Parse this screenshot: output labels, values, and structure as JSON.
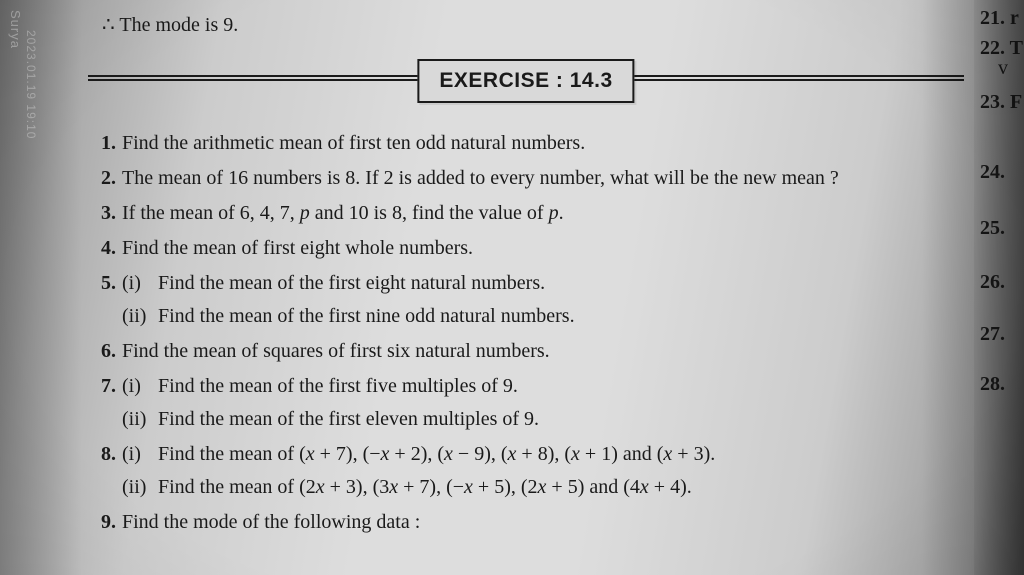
{
  "watermark": {
    "a": "Surya",
    "b": "2023.01.19 19:10"
  },
  "top_line": "∴ The mode is 9.",
  "exercise_label": "EXERCISE : 14.3",
  "questions": [
    {
      "n": "1.",
      "body": [
        "Find the arithmetic mean of first ten odd natural numbers."
      ]
    },
    {
      "n": "2.",
      "body": [
        "The mean of 16 numbers is 8. If 2 is added to every number, what will be the new mean ?"
      ]
    },
    {
      "n": "3.",
      "body_html": "If the mean of 6, 4, 7, <span class='ital'>p</span> and 10 is 8, find the value of <span class='ital'>p</span>."
    },
    {
      "n": "4.",
      "body": [
        "Find the mean of first eight whole numbers."
      ]
    },
    {
      "n": "5.",
      "sub": [
        {
          "label": "(i)",
          "text": "Find the mean of the first eight natural numbers."
        },
        {
          "label": "(ii)",
          "text": "Find the mean of the first nine odd natural numbers."
        }
      ]
    },
    {
      "n": "6.",
      "body": [
        "Find the mean of squares of first six natural numbers."
      ]
    },
    {
      "n": "7.",
      "sub": [
        {
          "label": "(i)",
          "text": "Find the mean of the first five multiples of 9."
        },
        {
          "label": "(ii)",
          "text": "Find the mean of the first eleven multiples of 9."
        }
      ]
    },
    {
      "n": "8.",
      "sub": [
        {
          "label": "(i)",
          "html": "Find the mean of (<span class='ital'>x</span> + 7), (−<span class='ital'>x</span> + 2), (<span class='ital'>x</span> − 9), (<span class='ital'>x</span> + 8), (<span class='ital'>x</span> + 1) and (<span class='ital'>x</span> + 3)."
        },
        {
          "label": "(ii)",
          "html": "Find the mean of (2<span class='ital'>x</span> + 3), (3<span class='ital'>x</span> + 7), (−<span class='ital'>x</span> + 5), (2<span class='ital'>x</span> + 5) and (4<span class='ital'>x</span> + 4)."
        }
      ]
    },
    {
      "n": "9.",
      "body": [
        "Find the mode of the following data :"
      ]
    }
  ],
  "rightcol": [
    {
      "n": "21.",
      "sub": "r",
      "gap": 10
    },
    {
      "n": "22.",
      "sub": "T",
      "sub2": "v",
      "gap": 14
    },
    {
      "n": "23.",
      "sub": "F",
      "gap": 50
    },
    {
      "n": "24.",
      "sub": "",
      "gap": 36
    },
    {
      "n": "25.",
      "sub": "",
      "gap": 34
    },
    {
      "n": "26.",
      "sub": "",
      "gap": 32
    },
    {
      "n": "27.",
      "sub": "",
      "gap": 30
    },
    {
      "n": "28.",
      "sub": "",
      "gap": 0
    }
  ],
  "colors": {
    "text": "#1a1a1a",
    "page_bg_mid": "#dddddd",
    "box_bg": "#d9d9d9"
  }
}
